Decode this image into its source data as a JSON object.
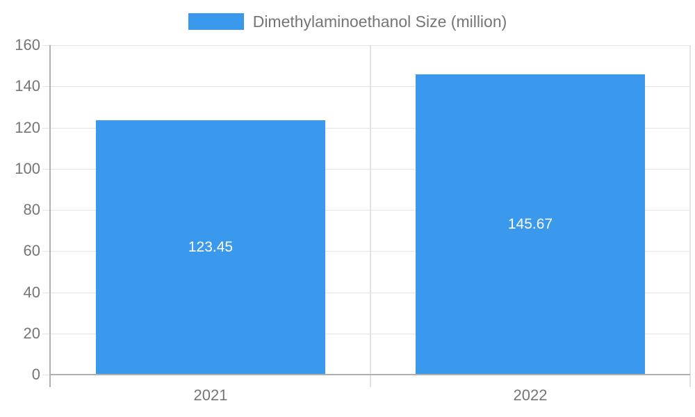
{
  "legend": {
    "label": "Dimethylaminoethanol Size (million)"
  },
  "colors": {
    "bar": "#3b99ed",
    "grid": "#e3e3e3",
    "axis": "#b0b0b0",
    "text": "#757575",
    "value_label": "#ffffff"
  },
  "chart_data": {
    "type": "bar",
    "title": "",
    "categories": [
      "2021",
      "2022"
    ],
    "series": [
      {
        "name": "Dimethylaminoethanol Size (million)",
        "values": [
          123.45,
          145.67
        ]
      }
    ],
    "value_labels": [
      "123.45",
      "145.67"
    ],
    "xlabel": "",
    "ylabel": "",
    "ylim": [
      0,
      160
    ],
    "ytick_step": 20,
    "yticks": [
      0,
      20,
      40,
      60,
      80,
      100,
      120,
      140,
      160
    ],
    "grid": true,
    "legend_position": "top",
    "value_labels_inside_bars": true
  }
}
